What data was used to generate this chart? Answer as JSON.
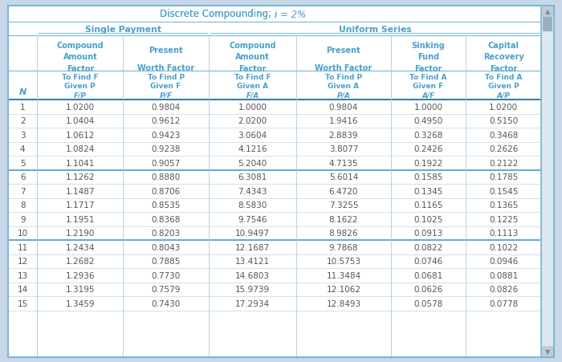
{
  "title_normal": "Discrete Compounding; ",
  "title_italic": "i",
  "title_suffix": " = 2%",
  "bg_color": "#c8d8e8",
  "table_bg": "#f2f5f8",
  "line_color": "#7ab8d9",
  "text_color": "#4a9fc8",
  "data_text_color": "#555555",
  "group_borders": [
    5,
    10
  ],
  "rows": [
    [
      1,
      1.02,
      0.9804,
      1.0,
      0.9804,
      1.0,
      1.02
    ],
    [
      2,
      1.0404,
      0.9612,
      2.02,
      1.9416,
      0.495,
      0.515
    ],
    [
      3,
      1.0612,
      0.9423,
      3.0604,
      2.8839,
      0.3268,
      0.3468
    ],
    [
      4,
      1.0824,
      0.9238,
      4.1216,
      3.8077,
      0.2426,
      0.2626
    ],
    [
      5,
      1.1041,
      0.9057,
      5.204,
      4.7135,
      0.1922,
      0.2122
    ],
    [
      6,
      1.1262,
      0.888,
      6.3081,
      5.6014,
      0.1585,
      0.1785
    ],
    [
      7,
      1.1487,
      0.8706,
      7.4343,
      6.472,
      0.1345,
      0.1545
    ],
    [
      8,
      1.1717,
      0.8535,
      8.583,
      7.3255,
      0.1165,
      0.1365
    ],
    [
      9,
      1.1951,
      0.8368,
      9.7546,
      8.1622,
      0.1025,
      0.1225
    ],
    [
      10,
      1.219,
      0.8203,
      10.9497,
      8.9826,
      0.0913,
      0.1113
    ],
    [
      11,
      1.2434,
      0.8043,
      12.1687,
      9.7868,
      0.0822,
      0.1022
    ],
    [
      12,
      1.2682,
      0.7885,
      13.4121,
      10.5753,
      0.0746,
      0.0946
    ],
    [
      13,
      1.2936,
      0.773,
      14.6803,
      11.3484,
      0.0681,
      0.0881
    ],
    [
      14,
      1.3195,
      0.7579,
      15.9739,
      12.1062,
      0.0626,
      0.0826
    ],
    [
      15,
      1.3459,
      0.743,
      17.2934,
      12.8493,
      0.0578,
      0.0778
    ]
  ]
}
